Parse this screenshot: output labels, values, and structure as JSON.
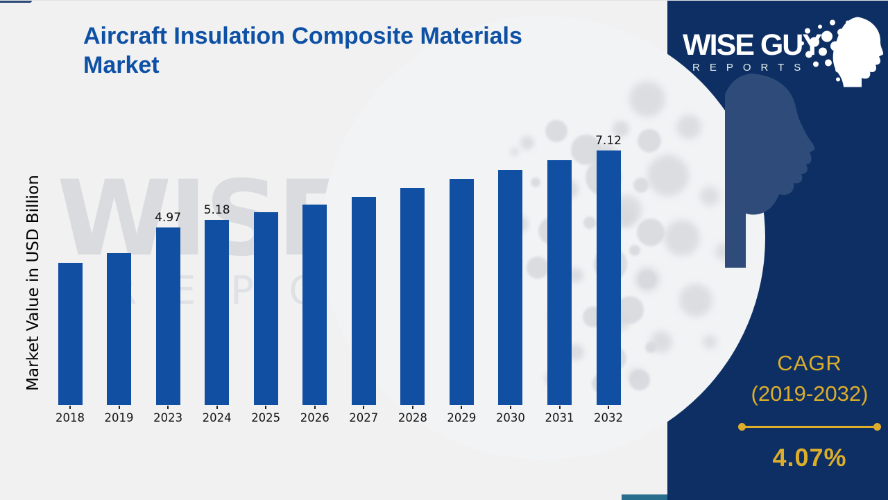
{
  "page": {
    "title": "Aircraft Insulation Composite Materials Market"
  },
  "logo": {
    "brand_line1": "WISE GUY",
    "brand_line2": "REPORTS"
  },
  "watermark": {
    "line1": "WISE GUY",
    "line2": "REPORTS"
  },
  "cagr": {
    "label": "CAGR",
    "range": "(2019-2032)",
    "value": "4.07%"
  },
  "colors": {
    "background": "#f1f1f2",
    "bar_blue": "#114fa2",
    "title_blue": "#0e50a4",
    "panel_navy": "#0d2f63",
    "gold": "#ddae2a",
    "watermark_gray": "#d9dbdf",
    "face_blue": "#2e4b7a",
    "teal_accent": "#2a6e8e"
  },
  "chart_data": {
    "type": "bar",
    "title": "",
    "categories": [
      "2018",
      "2019",
      "2023",
      "2024",
      "2025",
      "2026",
      "2027",
      "2028",
      "2029",
      "2030",
      "2031",
      "2032"
    ],
    "values": [
      3.98,
      4.24,
      4.97,
      5.18,
      5.39,
      5.61,
      5.83,
      6.07,
      6.32,
      6.58,
      6.84,
      7.12
    ],
    "point_labels": [
      null,
      null,
      "4.97",
      "5.18",
      null,
      null,
      null,
      null,
      null,
      null,
      null,
      "7.12"
    ],
    "xlabel": "",
    "ylabel": "Market Value in USD Billion",
    "ylim": [
      0,
      7.5
    ],
    "grid": false,
    "legend": null,
    "bar_color": "#114fa2"
  }
}
